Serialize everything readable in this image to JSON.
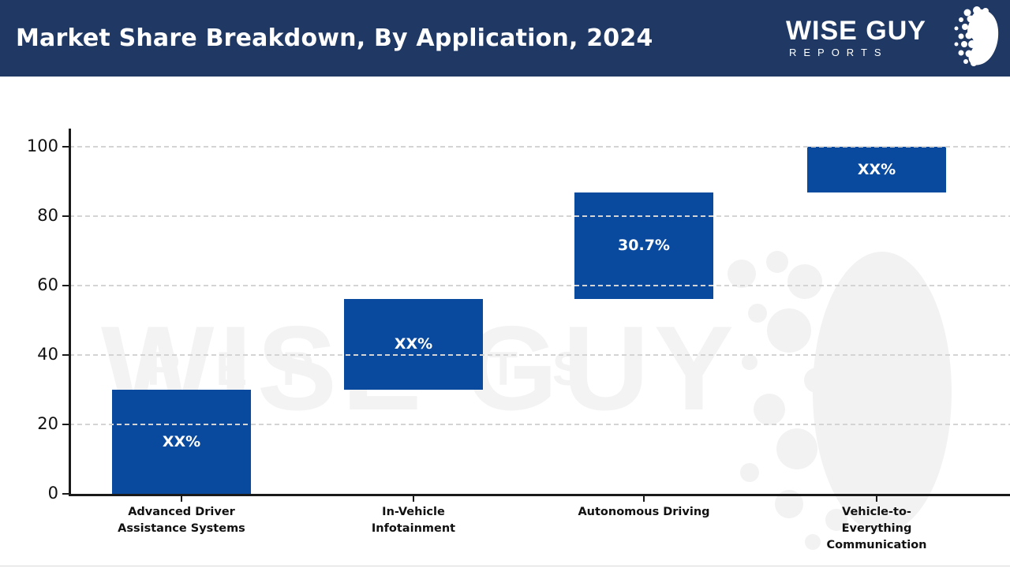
{
  "header": {
    "title": "Market Share Breakdown, By Application, 2024",
    "bg_color": "#1f3864",
    "logo": {
      "line1": "WISE GUY",
      "line2": "REPORTS"
    }
  },
  "watermark": {
    "line1": "WISE GUY",
    "line2": "REPORTS"
  },
  "chart_data": {
    "type": "bar",
    "subtype": "waterfall",
    "title": "Market Share Breakdown, By Application, 2024",
    "categories": [
      {
        "name": "Advanced Driver Assistance Systems",
        "lines": "Advanced Driver\nAssistance Systems"
      },
      {
        "name": "In-Vehicle Infotainment",
        "lines": "In-Vehicle\nInfotainment"
      },
      {
        "name": "Autonomous Driving",
        "lines": "Autonomous Driving"
      },
      {
        "name": "Vehicle-to-Everything Communication",
        "lines": "Vehicle-to-\nEverything\nCommunication"
      }
    ],
    "segments": [
      {
        "category": "Advanced Driver Assistance Systems",
        "start": 0,
        "end": 30,
        "value_label": "XX%"
      },
      {
        "category": "In-Vehicle Infotainment",
        "start": 30,
        "end": 56.2,
        "value_label": "XX%"
      },
      {
        "category": "Autonomous Driving",
        "start": 56.2,
        "end": 86.9,
        "value_label": "30.7%"
      },
      {
        "category": "Vehicle-to-Everything Communication",
        "start": 86.9,
        "end": 100,
        "value_label": "XX%"
      }
    ],
    "y_ticks": [
      0,
      20,
      40,
      60,
      80,
      100
    ],
    "ylim": [
      0,
      105
    ],
    "grid": true,
    "legend": false,
    "bar_color": "#0a4a9e",
    "grid_color": "#d4d4d4",
    "axis_color": "#1a1a1a"
  }
}
